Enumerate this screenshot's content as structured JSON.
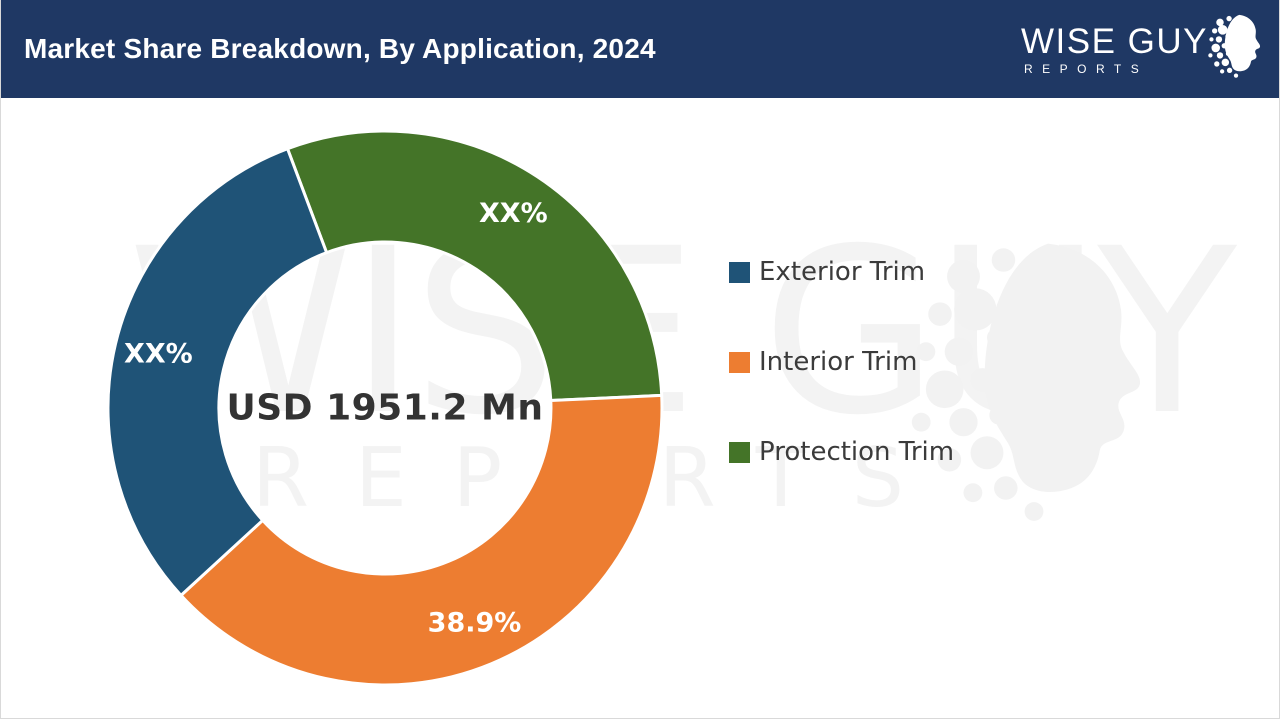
{
  "header": {
    "title": "Market Share Breakdown, By Application, 2024",
    "bg_color": "#1F3864",
    "logo": {
      "line1": "WISE GUY",
      "line2": "REPORTS"
    }
  },
  "watermark": {
    "line1": "WISE GUY",
    "line2": "REPORTS"
  },
  "chart_data": {
    "type": "pie",
    "subtype": "donut",
    "title": "Market Share Breakdown, By Application, 2024",
    "center_label": "USD 1951.2 Mn",
    "start_angle_deg_from_north": -20.6,
    "direction": "clockwise",
    "legend_position": "right",
    "slices": [
      {
        "name": "Protection Trim",
        "label": "XX%",
        "value_pct": 30.0,
        "estimated": true,
        "color": "#447428",
        "label_color": "#ffffff"
      },
      {
        "name": "Interior Trim",
        "label": "38.9%",
        "value_pct": 38.9,
        "estimated": false,
        "color": "#ED7D31",
        "label_color": "#ffffff"
      },
      {
        "name": "Exterior Trim",
        "label": "XX%",
        "value_pct": 31.1,
        "estimated": true,
        "color": "#1F5377",
        "label_color": "#ffffff"
      }
    ]
  },
  "legend": {
    "items": [
      {
        "label": "Exterior Trim",
        "color": "#1F5377"
      },
      {
        "label": "Interior Trim",
        "color": "#ED7D31"
      },
      {
        "label": "Protection Trim",
        "color": "#447428"
      }
    ]
  }
}
